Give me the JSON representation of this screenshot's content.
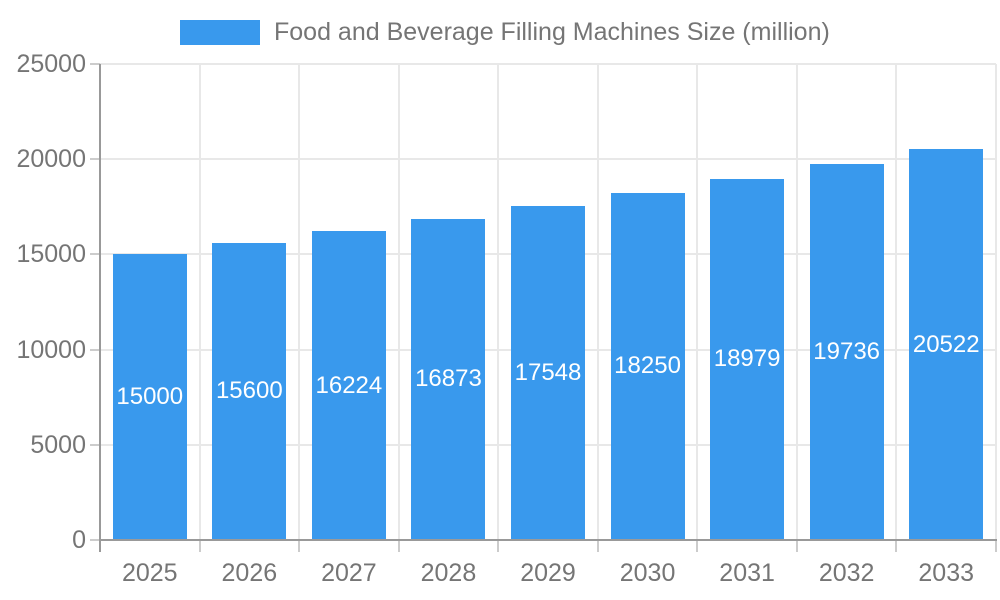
{
  "legend": {
    "label": "Food and Beverage Filling Machines Size (million)"
  },
  "chart_data": {
    "type": "bar",
    "title": "Food and Beverage Filling Machines Size (million)",
    "categories": [
      "2025",
      "2026",
      "2027",
      "2028",
      "2029",
      "2030",
      "2031",
      "2032",
      "2033"
    ],
    "values": [
      15000,
      15600,
      16224,
      16873,
      17548,
      18250,
      18979,
      19736,
      20522
    ],
    "xlabel": "",
    "ylabel": "",
    "ylim": [
      0,
      25000
    ],
    "yticks": [
      0,
      5000,
      10000,
      15000,
      20000,
      25000
    ],
    "grid": true,
    "legend_position": "top-center",
    "bar_value_labels": "inside-center",
    "colors": {
      "bar": "#3999ED",
      "bar_label": "#ffffff",
      "axis_text": "#757575",
      "axis_line": "#999999",
      "tick": "#cccccc",
      "grid": "#e8e8e8",
      "background": "#ffffff"
    }
  }
}
